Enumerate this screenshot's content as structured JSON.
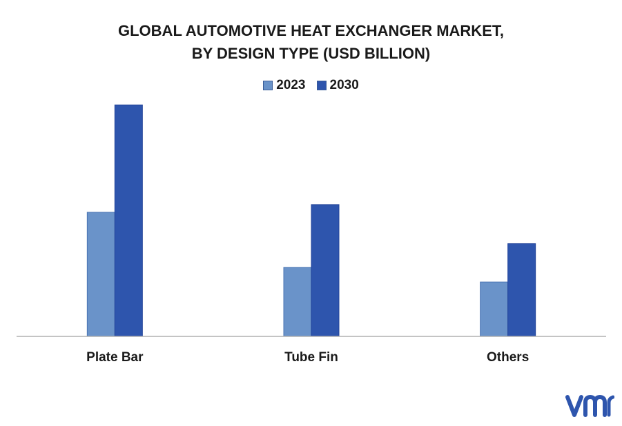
{
  "chart_data": {
    "type": "bar",
    "title": "GLOBAL AUTOMOTIVE HEAT EXCHANGER MARKET,",
    "subtitle": "BY DESIGN TYPE (USD BILLION)",
    "categories": [
      "Plate Bar",
      "Tube Fin",
      "Others"
    ],
    "series": [
      {
        "name": "2023",
        "values": [
          17.8,
          9.9,
          7.8
        ],
        "color": "#6a93c9"
      },
      {
        "name": "2030",
        "values": [
          33.2,
          18.9,
          13.3
        ],
        "color": "#2e55ad"
      }
    ],
    "ylim": [
      0,
      35
    ],
    "grid": false,
    "legend_position": "top-center",
    "y_axis_labels_shown": false
  },
  "logo": {
    "icon": "vmr-logo",
    "color": "#2e55ad"
  }
}
